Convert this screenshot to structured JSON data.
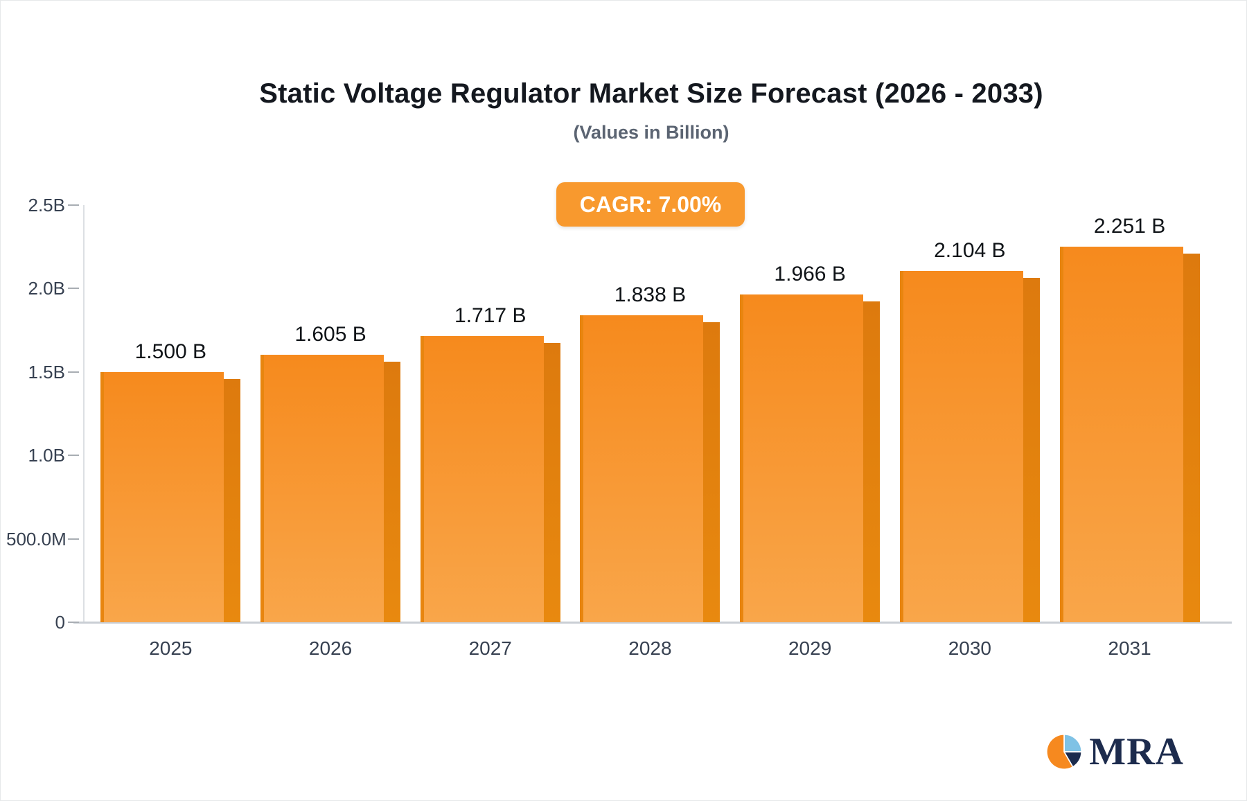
{
  "chart_data": {
    "type": "bar",
    "title": "Static Voltage Regulator Market Size Forecast (2026 - 2033)",
    "subtitle": "(Values in Billion)",
    "cagr_label": "CAGR: 7.00%",
    "categories": [
      "2025",
      "2026",
      "2027",
      "2028",
      "2029",
      "2030",
      "2031"
    ],
    "values": [
      1.5,
      1.605,
      1.717,
      1.838,
      1.966,
      2.104,
      2.251
    ],
    "value_labels": [
      "1.500 B",
      "1.605 B",
      "1.717 B",
      "1.838 B",
      "1.966 B",
      "2.104 B",
      "2.251 B"
    ],
    "y_ticks": [
      {
        "label": "2.5B",
        "value": 2.5
      },
      {
        "label": "2.0B",
        "value": 2.0
      },
      {
        "label": "1.5B",
        "value": 1.5
      },
      {
        "label": "1.0B",
        "value": 1.0
      },
      {
        "label": "500.0M",
        "value": 0.5
      },
      {
        "label": "0",
        "value": 0
      }
    ],
    "ylim": [
      0,
      2.5
    ],
    "xlabel": "",
    "ylabel": "",
    "grid": false,
    "legend_position": "none",
    "colors": {
      "bar_top": "#f68a1d",
      "bar_bottom": "#f9a64a",
      "bar_side": "#dd7a0e",
      "badge_bg": "#f8992e",
      "title_color": "#14181f",
      "subtitle_color": "#5b6472",
      "axis_color": "#c9ced4"
    }
  },
  "logo": {
    "text": "MRA"
  }
}
